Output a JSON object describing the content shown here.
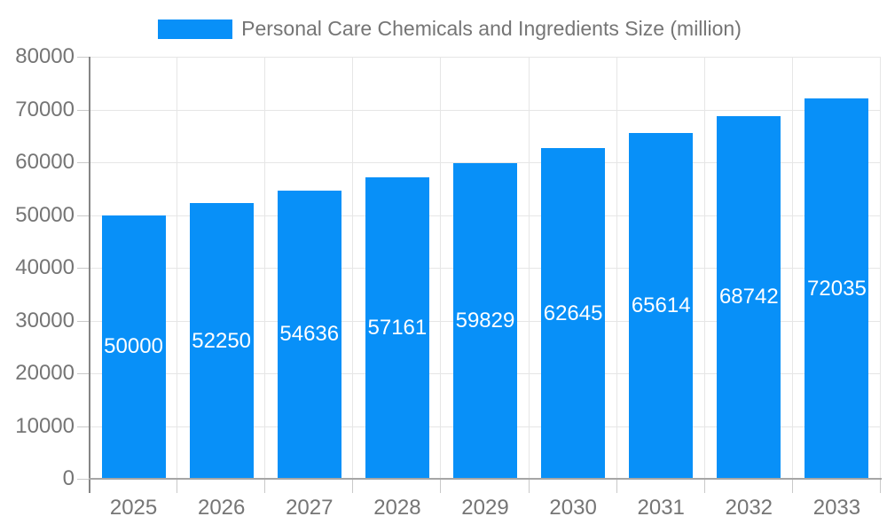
{
  "chart_data": {
    "type": "bar",
    "title": "Personal Care Chemicals and Ingredients Size (million)",
    "categories": [
      "2025",
      "2026",
      "2027",
      "2028",
      "2029",
      "2030",
      "2031",
      "2032",
      "2033"
    ],
    "values": [
      50000,
      52250,
      54636,
      57161,
      59829,
      62645,
      65614,
      68742,
      72035
    ],
    "xlabel": "",
    "ylabel": "",
    "ylim": [
      0,
      80000
    ],
    "ytick_step": 10000,
    "ytick_labels": [
      "0",
      "10000",
      "20000",
      "30000",
      "40000",
      "50000",
      "60000",
      "70000",
      "80000"
    ],
    "grid": true,
    "legend_position": "top",
    "bar_color": "#0890f8",
    "bar_label_color": "#ffffff",
    "axis_text_color": "#757575",
    "grid_color": "#e6e6e6"
  }
}
